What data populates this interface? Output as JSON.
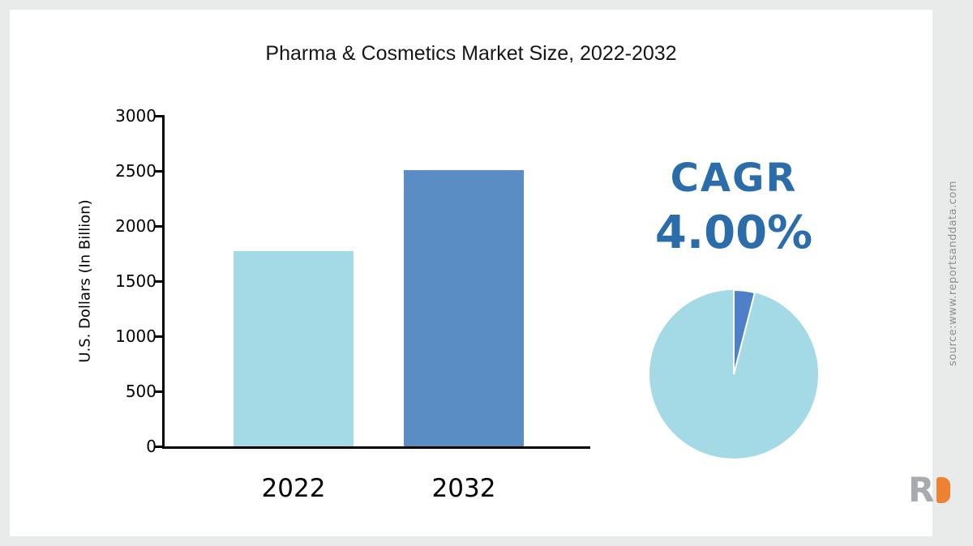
{
  "page": {
    "source_text": "source:www.reportsanddata.com",
    "logo_letter": "R"
  },
  "chart_data": {
    "type": "bar",
    "title": "Pharma & Cosmetics Market Size, 2022-2032",
    "categories": [
      "2022",
      "2032"
    ],
    "values": [
      1770,
      2510
    ],
    "units": "U.S. Dollars (Billion)",
    "bar_colors": [
      "#a4dae6",
      "#5b8dc5"
    ],
    "xlabel": "",
    "ylabel": "U.S. Dollars (In Billion)",
    "ylim": [
      0,
      3000
    ],
    "yticks": [
      0,
      500,
      1000,
      1500,
      2000,
      2500,
      3000
    ],
    "grid": false,
    "legend": "none",
    "annotations": {
      "cagr_label": "CAGR",
      "cagr_value": "4.00%",
      "cagr_percent": 4.0,
      "cagr_color": "#2b6cab"
    },
    "pie": {
      "type": "pie",
      "slice_percent": 4.0,
      "remainder_percent": 96.0,
      "slice_color": "#4d80c6",
      "base_color": "#a4dae6"
    }
  }
}
